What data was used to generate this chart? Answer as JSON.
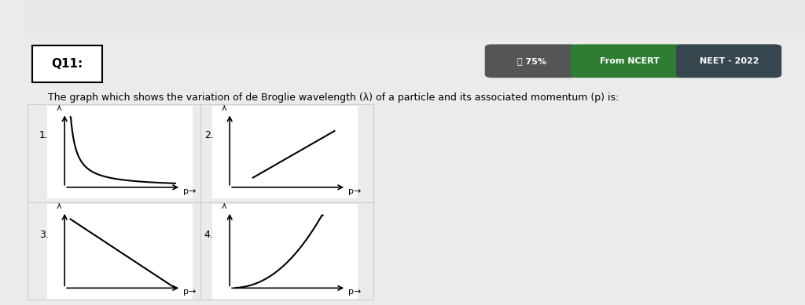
{
  "bg_color": "#f0f0f0",
  "panel_bg": "#ffffff",
  "title_text": "Q11:",
  "question_text": "The graph which shows the variation of de Broglie wavelength (λ) of a particle and its associated momentum (p) is:",
  "badge_75_text": "👍 75%",
  "badge_ncert_text": "From NCERT",
  "badge_neet_text": "NEET - 2022",
  "graphs": [
    {
      "label": "1.",
      "type": "hyperbola"
    },
    {
      "label": "2.",
      "type": "linear_up"
    },
    {
      "label": "3.",
      "type": "linear_down"
    },
    {
      "label": "4.",
      "type": "exponential_up"
    }
  ],
  "axis_label_x": "p→",
  "axis_label_y": "λ"
}
